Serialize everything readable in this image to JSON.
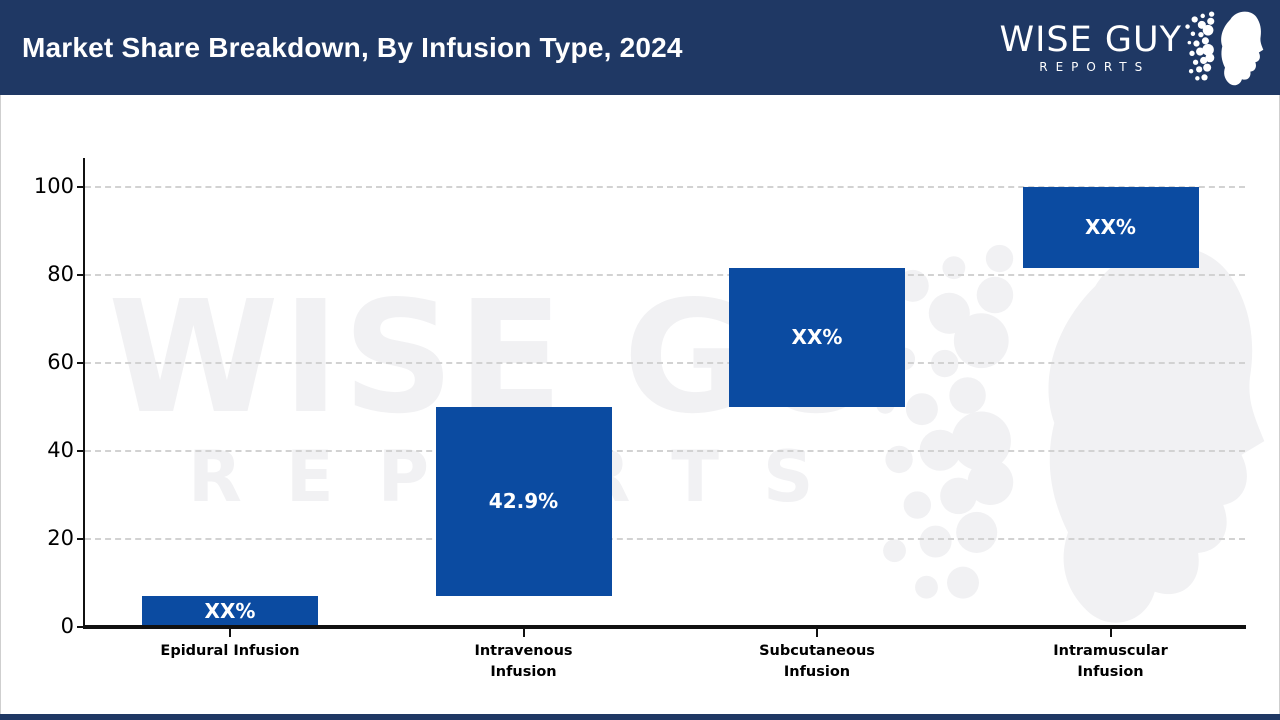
{
  "header": {
    "title": "Market Share Breakdown, By Infusion Type, 2024",
    "logo": {
      "line1": "WISE GUY",
      "line2": "REPORTS"
    }
  },
  "watermark": {
    "line1": "WISE GU",
    "line2": "REPORTS"
  },
  "chart_data": {
    "type": "bar",
    "subtype": "floating-waterfall",
    "title": "Market Share Breakdown, By Infusion Type, 2024",
    "xlabel": "",
    "ylabel": "",
    "ylim": [
      0,
      100
    ],
    "yticks": [
      0,
      20,
      40,
      60,
      80,
      100
    ],
    "grid": "horizontal-dashed",
    "legend": "none",
    "categories": [
      "Epidural Infusion",
      "Intravenous Infusion",
      "Subcutaneous Infusion",
      "Intramuscular Infusion"
    ],
    "categories_display": [
      [
        "Epidural Infusion"
      ],
      [
        "Intravenous",
        "Infusion"
      ],
      [
        "Subcutaneous",
        "Infusion"
      ],
      [
        "Intramuscular",
        "Infusion"
      ]
    ],
    "segments": [
      {
        "category": "Epidural Infusion",
        "label": "XX%",
        "base": 0,
        "top": 7.1
      },
      {
        "category": "Intravenous Infusion",
        "label": "42.9%",
        "base": 7.1,
        "top": 50
      },
      {
        "category": "Subcutaneous Infusion",
        "label": "XX%",
        "base": 50,
        "top": 81.6
      },
      {
        "category": "Intramuscular Infusion",
        "label": "XX%",
        "base": 81.6,
        "top": 100
      }
    ]
  },
  "colors": {
    "header_bg": "#1f3864",
    "footer_bg": "#1f3864",
    "bar": "#0b4ba1",
    "grid": "#d2d2d2",
    "axis": "#111111",
    "watermark": "#f1f1f3"
  }
}
